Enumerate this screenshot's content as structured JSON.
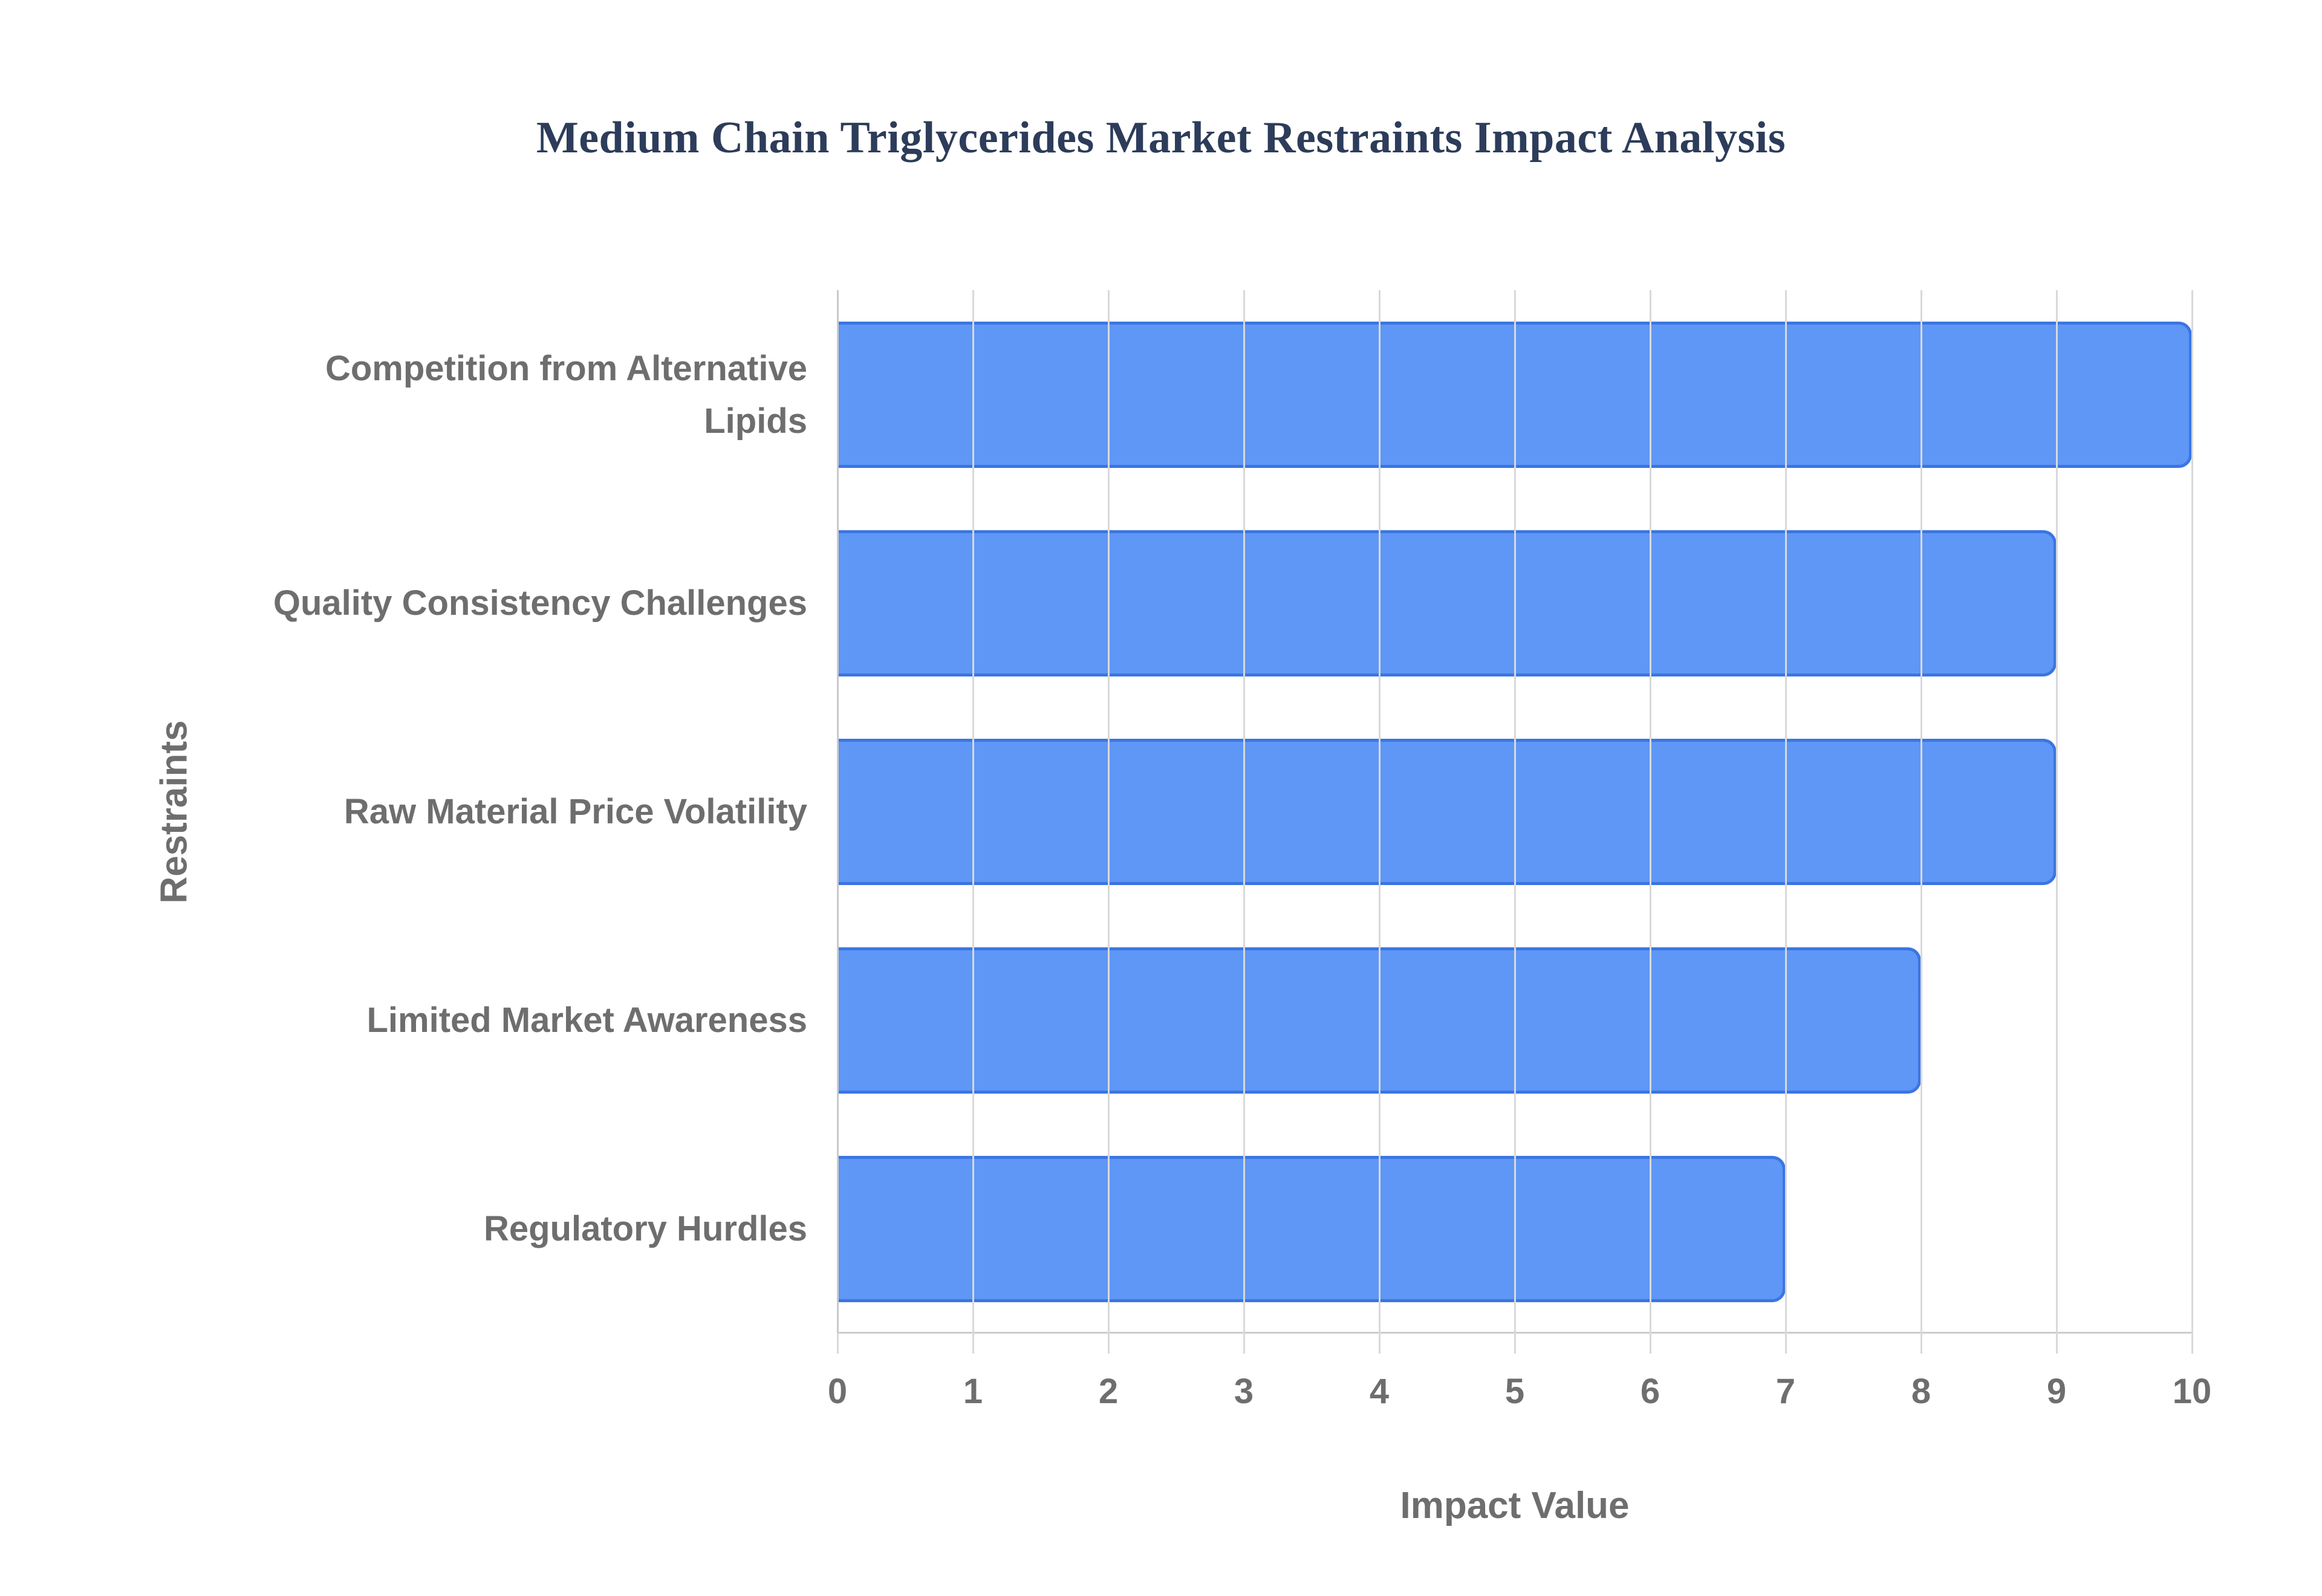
{
  "title": {
    "text": "Medium Chain Triglycerides Market Restraints Impact Analysis",
    "color": "#2c3c5a"
  },
  "chart_data": {
    "type": "bar",
    "orientation": "horizontal",
    "title": "Medium Chain Triglycerides Market Restraints Impact Analysis",
    "categories": [
      "Competition from Alternative Lipids",
      "Quality Consistency Challenges",
      "Raw Material Price Volatility",
      "Limited Market Awareness",
      "Regulatory Hurdles"
    ],
    "values": [
      10,
      9,
      9,
      8,
      7
    ],
    "xlabel": "Impact Value",
    "ylabel": "Restraints",
    "xlim": [
      0,
      10
    ],
    "xticks": [
      0,
      1,
      2,
      3,
      4,
      5,
      6,
      7,
      8,
      9,
      10
    ],
    "grid": true,
    "legend": "none",
    "bar_color": "#4285F4",
    "bar_opacity": 0.85,
    "bar_border_color": "#3a73e0",
    "gridline_color": "#d9d9d9",
    "label_color": "#6e6e6e"
  }
}
